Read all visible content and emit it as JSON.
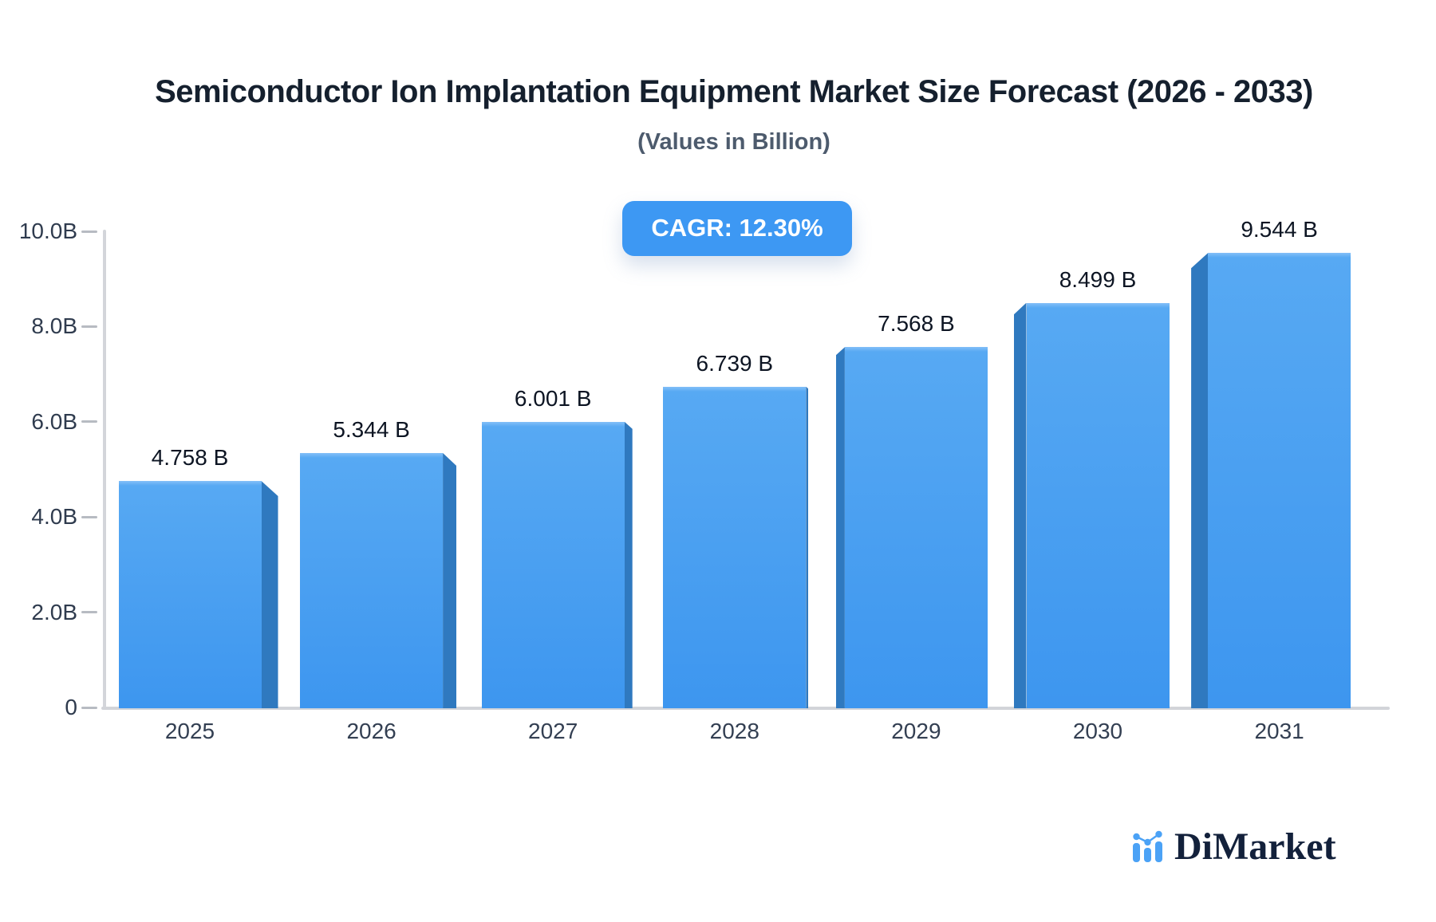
{
  "header": {
    "title": "Semiconductor Ion Implantation Equipment Market Size Forecast (2026 - 2033)",
    "subtitle": "(Values in Billion)",
    "cagr_badge": "CAGR: 12.30%"
  },
  "chart_data": {
    "type": "bar",
    "title": "Semiconductor Ion Implantation Equipment Market Size Forecast (2026 - 2033)",
    "subtitle": "(Values in Billion)",
    "cagr": "12.30%",
    "categories": [
      "2025",
      "2026",
      "2027",
      "2028",
      "2029",
      "2030",
      "2031"
    ],
    "values": [
      4.758,
      5.344,
      6.001,
      6.739,
      7.568,
      8.499,
      9.544
    ],
    "bar_labels": [
      "4.758 B",
      "5.344 B",
      "6.001 B",
      "6.739 B",
      "7.568 B",
      "8.499 B",
      "9.544 B"
    ],
    "xlabel": "",
    "ylabel": "",
    "ylim": [
      0,
      10
    ],
    "y_ticks": [
      {
        "label": "10.0B",
        "value": 10
      },
      {
        "label": "8.0B",
        "value": 8
      },
      {
        "label": "6.0B",
        "value": 6
      },
      {
        "label": "4.0B",
        "value": 4
      },
      {
        "label": "2.0B",
        "value": 2
      },
      {
        "label": "0",
        "value": 0
      }
    ],
    "grid": false,
    "legend": false,
    "bar_style": "3d-perspective",
    "colors": {
      "bar_face_highlight": "#83BFF8",
      "bar_face_top": "#57A9F3",
      "bar_face_bottom": "#3D96EF",
      "bar_side": "#2F79BF",
      "axis_line": "#D3D5DA",
      "tick_label": "#2F3B4E",
      "value_label": "#0D1523",
      "badge_bg": "#3D98F3",
      "badge_text": "#FFFFFF"
    }
  },
  "footer": {
    "logo_text": "DiMarket",
    "logo_icon": "bar-chart-logo-icon",
    "logo_icon_color": "#4BA2F6",
    "logo_text_color": "#13213B"
  }
}
